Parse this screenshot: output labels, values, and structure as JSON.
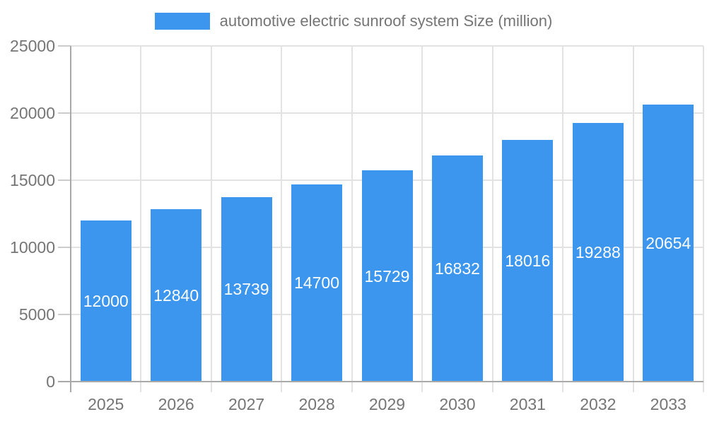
{
  "legend": {
    "label": "automotive electric sunroof system Size (million)"
  },
  "chart_data": {
    "type": "bar",
    "title": "automotive electric sunroof system Size (million)",
    "categories": [
      "2025",
      "2026",
      "2027",
      "2028",
      "2029",
      "2030",
      "2031",
      "2032",
      "2033"
    ],
    "series": [
      {
        "name": "automotive electric sunroof system Size (million)",
        "values": [
          12000,
          12840,
          13739,
          14700,
          15729,
          16832,
          18016,
          19288,
          20654
        ]
      }
    ],
    "value_labels": [
      "12000",
      "12840",
      "13739",
      "14700",
      "15729",
      "16832",
      "18016",
      "19288",
      "20654"
    ],
    "xlabel": "",
    "ylabel": "",
    "ylim": [
      0,
      25000
    ],
    "y_ticks": [
      0,
      5000,
      10000,
      15000,
      20000,
      25000
    ],
    "y_tick_labels": [
      "0",
      "5000",
      "10000",
      "15000",
      "20000",
      "25000"
    ],
    "grid": true,
    "legend_position": "top",
    "value_label_position": "inside-center"
  },
  "colors": {
    "bar": "#3c96ee",
    "axis_line": "#a9a9a9",
    "grid": "#e2e2e2",
    "tick": "#cccccc",
    "axis_text": "#757575",
    "value_text": "#ffffff",
    "background": "#ffffff"
  }
}
